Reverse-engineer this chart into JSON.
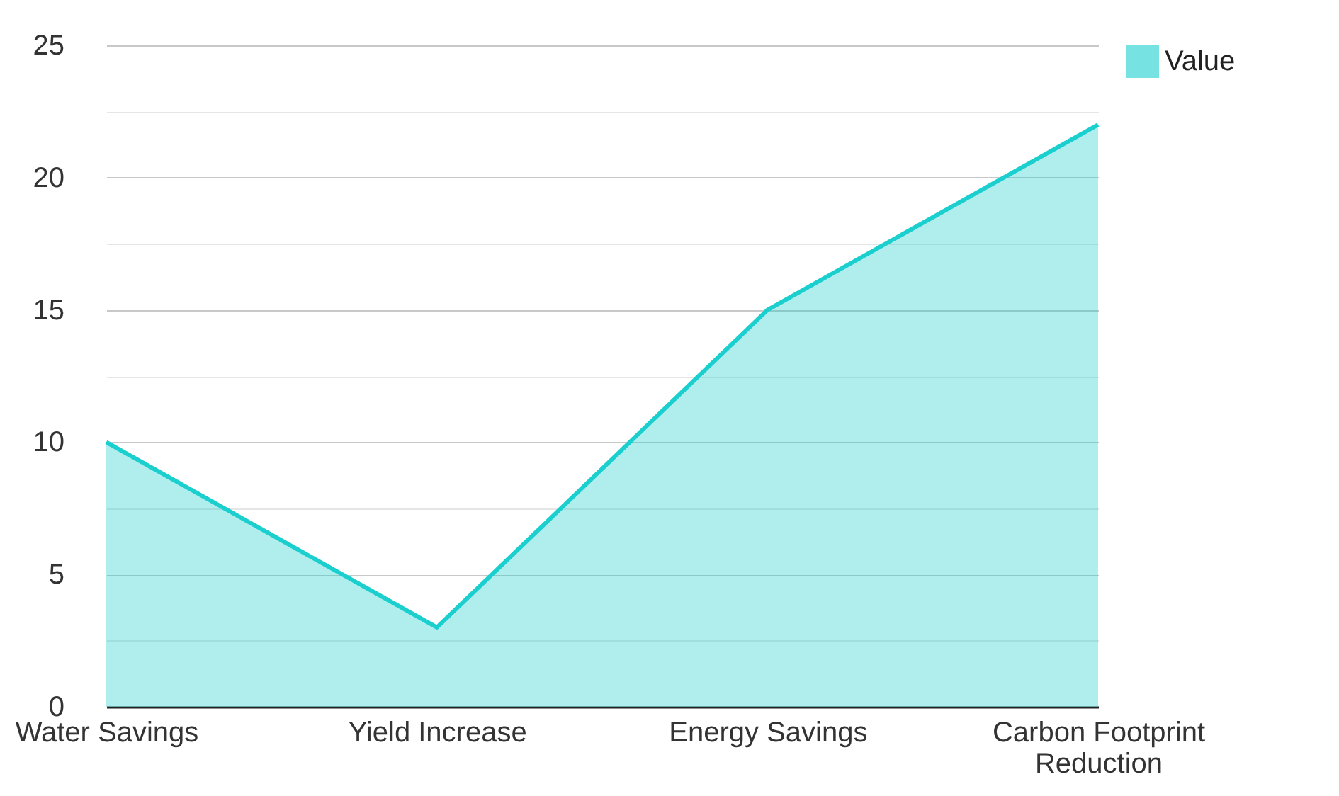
{
  "chart_data": {
    "type": "area",
    "categories": [
      "Water Savings",
      "Yield Increase",
      "Energy Savings",
      "Carbon Footprint Reduction"
    ],
    "series": [
      {
        "name": "Value",
        "color": "#1ccfcf",
        "values": [
          10,
          3,
          15,
          22
        ]
      }
    ],
    "ylim": [
      0,
      25
    ],
    "yticks": [
      0,
      {
        "value": 2.5,
        "label": null
      },
      5,
      {
        "value": 7.5,
        "label": null
      },
      10,
      {
        "value": 12.5,
        "label": null
      },
      15,
      {
        "value": 17.5,
        "label": null
      },
      20,
      {
        "value": 22.5,
        "label": null
      },
      25
    ],
    "grid": "y",
    "legend": "top right"
  }
}
